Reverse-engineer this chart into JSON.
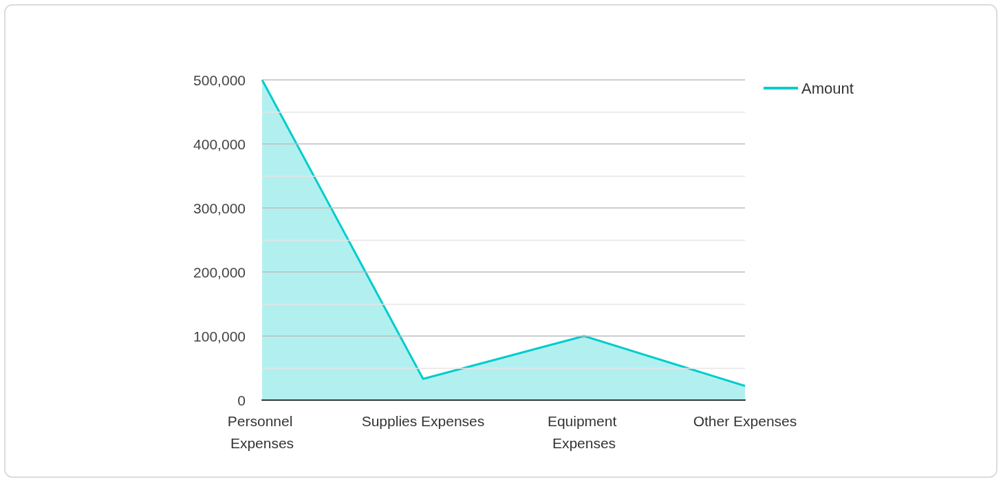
{
  "chart_data": {
    "type": "area",
    "categories": [
      "Personnel Expenses",
      "Supplies Expenses",
      "Equipment Expenses",
      "Other Expenses"
    ],
    "series": [
      {
        "name": "Amount",
        "color": "#00cccc",
        "values": [
          500000,
          33000,
          100000,
          22000
        ]
      }
    ],
    "ylim": [
      0,
      500000
    ],
    "yticks": [
      0,
      {
        "value": 50000,
        "label": null
      },
      {
        "value": 100000,
        "label": "100,000"
      },
      {
        "value": 150000,
        "label": null
      },
      {
        "value": 200000,
        "label": "200,000"
      },
      {
        "value": 250000,
        "label": null
      },
      {
        "value": 300000,
        "label": "300,000"
      },
      {
        "value": 350000,
        "label": null
      },
      {
        "value": 400000,
        "label": "400,000"
      },
      {
        "value": 450000,
        "label": null
      },
      {
        "value": 500000,
        "label": "500,000"
      }
    ],
    "grid": "y",
    "legend": "top right"
  }
}
